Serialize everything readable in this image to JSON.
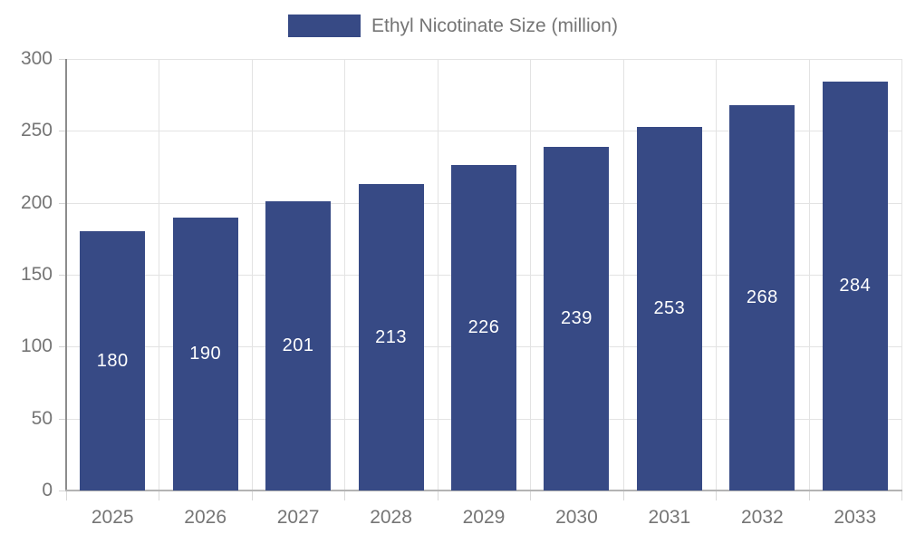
{
  "chart_data": {
    "type": "bar",
    "title": "",
    "xlabel": "",
    "ylabel": "",
    "categories": [
      "2025",
      "2026",
      "2027",
      "2028",
      "2029",
      "2030",
      "2031",
      "2032",
      "2033"
    ],
    "series": [
      {
        "name": "Ethyl Nicotinate Size (million)",
        "values": [
          180,
          190,
          201,
          213,
          226,
          239,
          253,
          268,
          284
        ],
        "color": "#374a85",
        "value_label_color": "#ffffff"
      }
    ],
    "ylim": [
      0,
      300
    ],
    "yticks": [
      0,
      50,
      100,
      150,
      200,
      250,
      300
    ],
    "grid": true,
    "legend_position": "top",
    "colors": {
      "bar": "#374a85",
      "grid_line": "#e3e3e3",
      "y_axis_line": "#8c8c8c",
      "x_axis_line": "#b3b3b3",
      "tick_label": "#757575",
      "legend_text": "#757575",
      "bar_value_text": "#ffffff",
      "background": "#ffffff"
    }
  }
}
